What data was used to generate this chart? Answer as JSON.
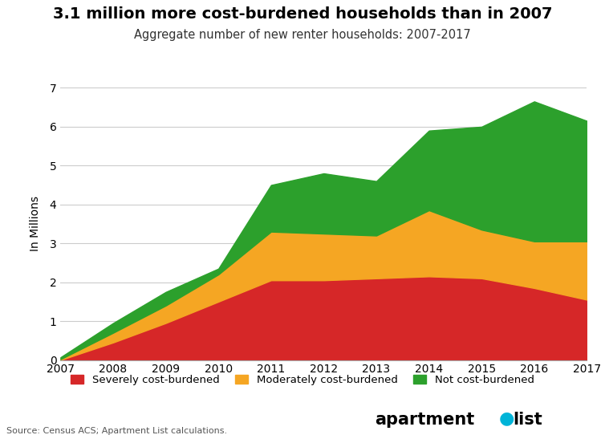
{
  "title": "3.1 million more cost-burdened households than in 2007",
  "subtitle": "Aggregate number of new renter households: 2007-2017",
  "ylabel": "In Millions",
  "source": "Source: Census ACS; Apartment List calculations.",
  "years": [
    2007,
    2008,
    2009,
    2010,
    2011,
    2012,
    2013,
    2014,
    2015,
    2016,
    2017
  ],
  "severely": [
    0.0,
    0.45,
    0.95,
    1.5,
    2.05,
    2.05,
    2.1,
    2.15,
    2.1,
    1.85,
    1.55
  ],
  "moderately": [
    0.02,
    0.25,
    0.45,
    0.7,
    1.25,
    1.2,
    1.1,
    1.7,
    1.25,
    1.2,
    1.5
  ],
  "not_burdened": [
    0.05,
    0.25,
    0.35,
    0.15,
    1.2,
    1.55,
    1.4,
    2.05,
    2.65,
    3.6,
    3.1
  ],
  "color_severely": "#d62728",
  "color_moderately": "#f5a623",
  "color_not_burdened": "#2ca02c",
  "legend_labels": [
    "Severely cost-burdened",
    "Moderately cost-burdened",
    "Not cost-burdened"
  ],
  "ylim": [
    0,
    7
  ],
  "yticks": [
    0,
    1,
    2,
    3,
    4,
    5,
    6,
    7
  ],
  "background_color": "#ffffff",
  "grid_color": "#cccccc"
}
